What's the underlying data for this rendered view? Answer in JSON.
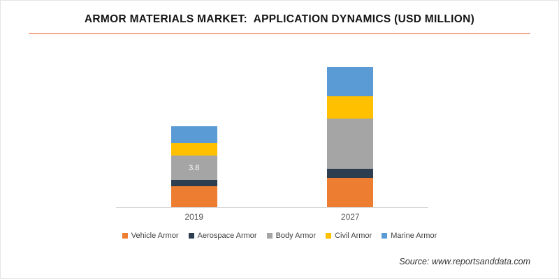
{
  "header": {
    "title": "ARMOR MATERIALS MARKET:  APPLICATION DYNAMICS (USD MILLION)",
    "accent_color": "#E55C2C"
  },
  "footer": {
    "source": "Source: www.reportsanddata.com"
  },
  "chart_data": {
    "type": "bar",
    "subtype": "stacked-column",
    "title": "ARMOR MATERIALS MARKET: APPLICATION DYNAMICS (USD MILLION)",
    "unit": "USD Million",
    "categories": [
      "2019",
      "2027"
    ],
    "series": [
      {
        "name": "Vehicle Armor",
        "color": "#ED7D31",
        "values": [
          3.3,
          4.6
        ],
        "data_labels": [
          "",
          ""
        ]
      },
      {
        "name": "Aerospace Armor",
        "color": "#2C3E50",
        "values": [
          0.9,
          1.4
        ],
        "data_labels": [
          "",
          ""
        ]
      },
      {
        "name": "Body Armor",
        "color": "#A5A5A5",
        "values": [
          3.8,
          7.8
        ],
        "data_labels": [
          "3.8",
          ""
        ]
      },
      {
        "name": "Civil Armor",
        "color": "#FFC000",
        "values": [
          2.0,
          3.5
        ],
        "data_labels": [
          "",
          ""
        ]
      },
      {
        "name": "Marine Armor",
        "color": "#5B9BD5",
        "values": [
          2.6,
          4.5
        ],
        "data_labels": [
          "",
          ""
        ]
      }
    ],
    "totals": [
      12.6,
      21.8
    ],
    "ylim": [
      0,
      22
    ],
    "gridlines": false,
    "legend_position": "bottom",
    "axis_line_color": "#d9d9d9"
  }
}
